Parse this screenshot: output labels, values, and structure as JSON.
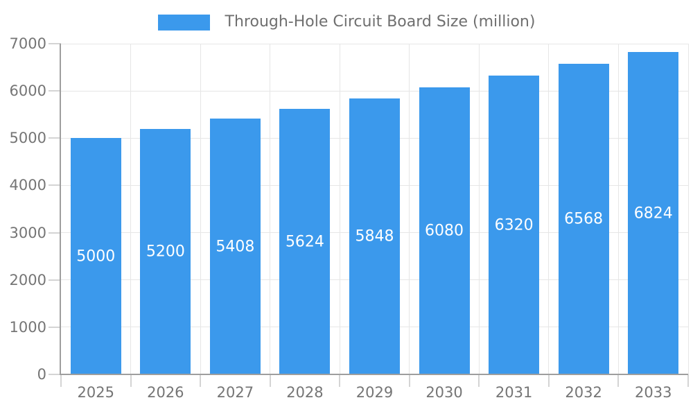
{
  "chart_data": {
    "type": "bar",
    "title": "Through-Hole Circuit Board Size (million)",
    "categories": [
      "2025",
      "2026",
      "2027",
      "2028",
      "2029",
      "2030",
      "2031",
      "2032",
      "2033"
    ],
    "values": [
      5000,
      5200,
      5408,
      5624,
      5848,
      6080,
      6320,
      6568,
      6824
    ],
    "xlabel": "",
    "ylabel": "",
    "ylim": [
      0,
      7000
    ],
    "ytick_step": 1000,
    "ytick_labels": [
      "0",
      "1000",
      "2000",
      "3000",
      "4000",
      "5000",
      "6000",
      "7000"
    ],
    "grid": true,
    "legend_position": "top-center",
    "value_labels": "centered-inside-bars"
  },
  "legend": {
    "series_label": "Through-Hole Circuit Board Size (million)"
  },
  "colors": {
    "bar": "#3B99EC",
    "bar_label": "#FFFFFF",
    "axis_text": "#757575",
    "legend_text": "#6F6F6F",
    "grid_line": "#E6E6E6",
    "tick_line": "#D4D4D4",
    "axis_line": "#9E9E9E",
    "background": "#FFFFFF"
  }
}
